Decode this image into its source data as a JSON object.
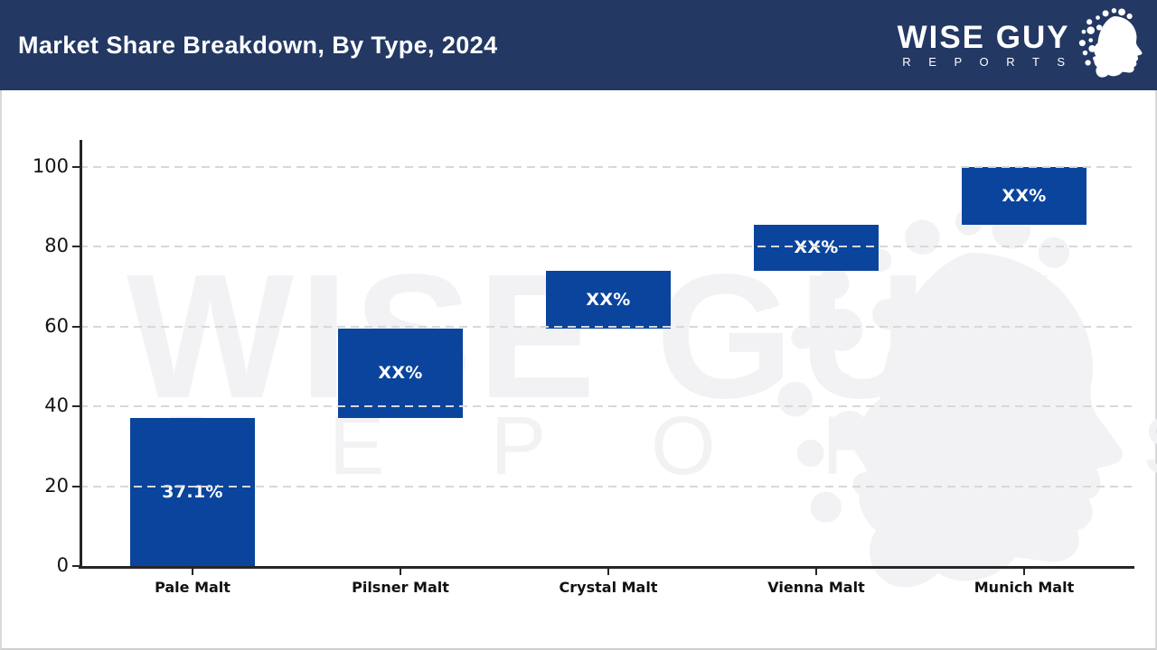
{
  "header": {
    "title": "Market Share Breakdown, By Type, 2024",
    "logo": {
      "line1": "WISE GUY",
      "line2": "R E P O R T S"
    }
  },
  "watermark": {
    "line1": "WISE GUY",
    "line2": "R E P O R T S"
  },
  "colors": {
    "header_bg": "#233863",
    "bar": "#0a449c",
    "bar_label": "#ffffff",
    "grid": "#d8d8d8",
    "axis": "#262626",
    "watermark": "#f2f2f5"
  },
  "chart_data": {
    "type": "bar",
    "subtype": "waterfall",
    "title": "Market Share Breakdown, By Type, 2024",
    "xlabel": "",
    "ylabel": "",
    "categories": [
      "Pale Malt",
      "Pilsner Malt",
      "Crystal Malt",
      "Vienna Malt",
      "Munich Malt"
    ],
    "segments": [
      {
        "category": "Pale Malt",
        "start": 0,
        "end": 37.1,
        "label": "37.1%"
      },
      {
        "category": "Pilsner Malt",
        "start": 37.1,
        "end": 59.6,
        "label": "XX%"
      },
      {
        "category": "Crystal Malt",
        "start": 59.6,
        "end": 74.0,
        "label": "XX%"
      },
      {
        "category": "Vienna Malt",
        "start": 74.0,
        "end": 85.6,
        "label": "XX%"
      },
      {
        "category": "Munich Malt",
        "start": 85.6,
        "end": 100.0,
        "label": "XX%"
      }
    ],
    "yticks": [
      0,
      20,
      40,
      60,
      80,
      100
    ],
    "ylim": [
      0,
      107
    ],
    "grid": "horizontal-dashed",
    "legend": "none"
  }
}
